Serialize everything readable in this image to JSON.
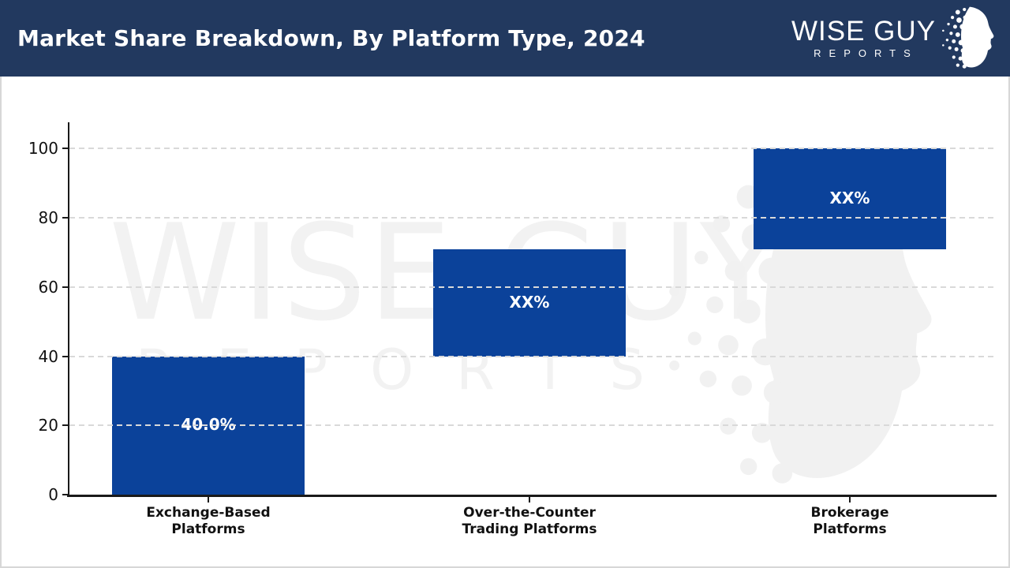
{
  "header": {
    "title": "Market Share Breakdown, By Platform Type, 2024",
    "logo": {
      "line1": "WISE GUY",
      "line2": "REPORTS"
    }
  },
  "watermark": {
    "line1": "WISE GUY",
    "line2": "REPORTS"
  },
  "chart_data": {
    "type": "bar",
    "subtype": "stepped-waterfall",
    "title": "Market Share Breakdown, By Platform Type, 2024",
    "categories": [
      "Exchange-Based Platforms",
      "Over-the-Counter Trading Platforms",
      "Brokerage Platforms"
    ],
    "category_lines": [
      [
        "Exchange-Based",
        "Platforms"
      ],
      [
        "Over-the-Counter",
        "Trading Platforms"
      ],
      [
        "Brokerage",
        "Platforms"
      ]
    ],
    "bars": [
      {
        "start": 0,
        "end": 40,
        "label": "40.0%"
      },
      {
        "start": 40,
        "end": 71,
        "label": "XX%"
      },
      {
        "start": 71,
        "end": 100,
        "label": "XX%"
      }
    ],
    "ytick_values": [
      0,
      20,
      40,
      60,
      80,
      100
    ],
    "ytick_labels": [
      "0",
      "20",
      "40",
      "60",
      "80",
      "100"
    ],
    "ylim": [
      0,
      107.6
    ],
    "xlabel": "",
    "ylabel": "",
    "grid": "horizontal-dashed",
    "legend": "none",
    "colors": {
      "bar": "#0b429a",
      "bar_label": "#ffffff",
      "grid": "#d9d9d9",
      "axis": "#1a1a1a",
      "header_bg": "#22395f",
      "header_text": "#ffffff",
      "watermark": "#f2f2f2"
    }
  }
}
